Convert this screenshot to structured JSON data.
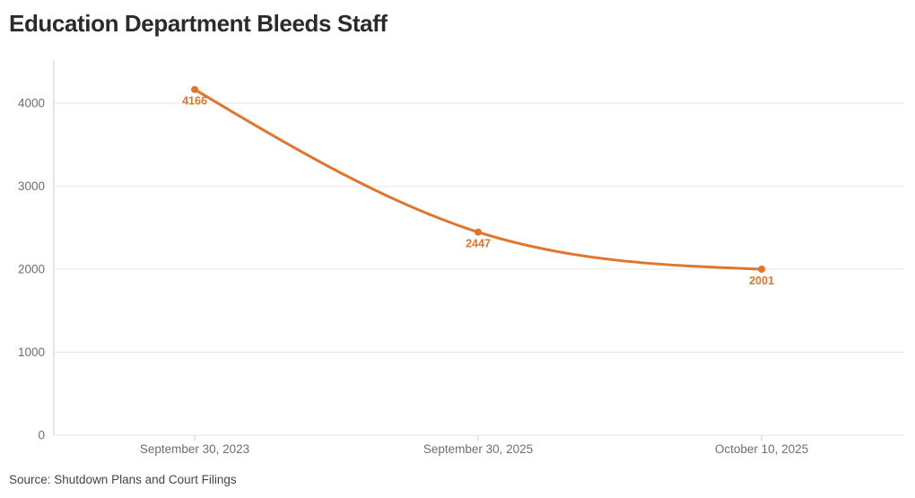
{
  "header": {
    "title": "Education Department Bleeds Staff"
  },
  "footer": {
    "source": "Source: Shutdown Plans and Court Filings"
  },
  "chart_data": {
    "type": "line",
    "title": "Education Department Bleeds Staff",
    "categories": [
      "September 30, 2023",
      "September 30, 2025",
      "October 10, 2025"
    ],
    "values": [
      4166,
      2447,
      2001
    ],
    "point_labels": [
      "4166",
      "2447",
      "2001"
    ],
    "xlabel": "",
    "ylabel": "",
    "ylim": [
      0,
      4520
    ],
    "yticks": [
      0,
      1000,
      2000,
      3000,
      4000
    ],
    "ytick_labels": [
      "0",
      "1000",
      "2000",
      "3000",
      "4000"
    ],
    "grid": true,
    "legend": "none",
    "curve": "natural",
    "line_color": "#E2752D",
    "point_color": "#E2752D",
    "label_color": "#E2752D",
    "axis_text_color": "#6E6E6E",
    "grid_color": "#E7E7E7",
    "axis_line_color": "#CFCFCF"
  }
}
